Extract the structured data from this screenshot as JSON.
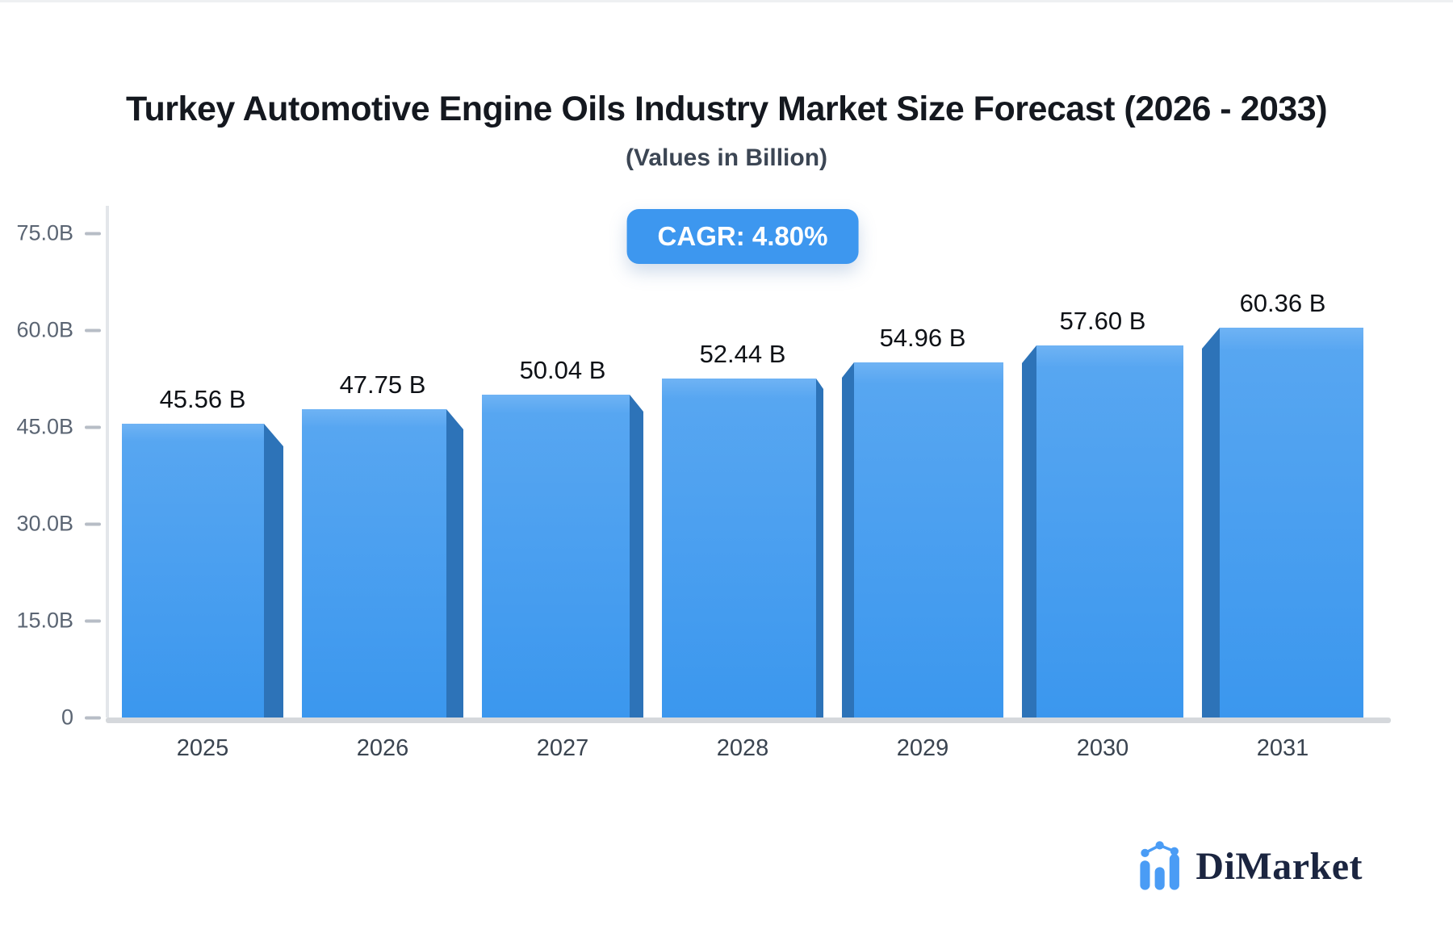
{
  "header": {
    "title": "Turkey Automotive Engine Oils Industry Market Size Forecast (2026 - 2033)",
    "subtitle": "(Values in Billion)",
    "cagr_label": "CAGR: 4.80%"
  },
  "chart_data": {
    "type": "bar",
    "title": "Turkey Automotive Engine Oils Industry Market Size Forecast (2026 - 2033)",
    "subtitle": "(Values in Billion)",
    "cagr": "4.80%",
    "categories": [
      "2025",
      "2026",
      "2027",
      "2028",
      "2029",
      "2030",
      "2031"
    ],
    "values": [
      45.56,
      47.75,
      50.04,
      52.44,
      54.96,
      57.6,
      60.36
    ],
    "value_labels": [
      "45.56 B",
      "47.75 B",
      "50.04 B",
      "52.44 B",
      "54.96 B",
      "57.60 B",
      "60.36 B"
    ],
    "unit": "Billion",
    "ylim": [
      0,
      75
    ],
    "yticks": [
      "75.0B",
      "60.0B",
      "45.0B",
      "30.0B",
      "15.0B",
      "0"
    ],
    "xlabel": "",
    "ylabel": "",
    "grid": false,
    "legend": "none",
    "bar_style": "3d-extruded"
  },
  "branding": {
    "logo_text": "DiMarket",
    "logo_icon": "bar-line-chart-icon"
  },
  "colors": {
    "bar_top": "#57A6F1",
    "bar_bottom": "#3B97EE",
    "bar_highlight": "#6FB3F4",
    "bar_bevel": "#2D73B8",
    "badge_bg": "#3D97EF",
    "badge_text": "#FFFFFF",
    "title_text": "#14181F",
    "subtitle_text": "#3C4654",
    "value_text": "#0E1116",
    "tick_text": "#5B6573",
    "xtick_text": "#3A4450",
    "axis_line": "#E3E6EA",
    "baseline": "#D5D8DC",
    "tick_dash": "#B7BDC6",
    "logo_blue": "#4A9CF5",
    "logo_text_color": "#1B2540"
  }
}
